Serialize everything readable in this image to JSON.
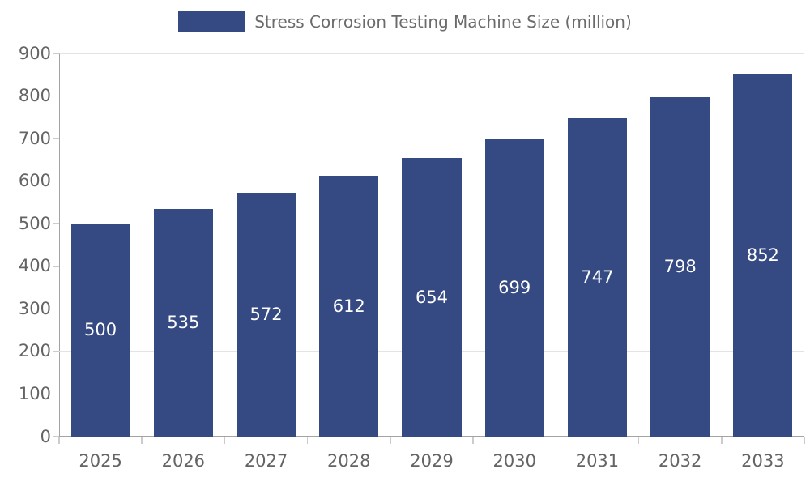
{
  "chart_data": {
    "type": "bar",
    "title": "Stress Corrosion Testing Machine Size (million)",
    "series_name": "Stress Corrosion Testing Machine Size (million)",
    "categories": [
      "2025",
      "2026",
      "2027",
      "2028",
      "2029",
      "2030",
      "2031",
      "2032",
      "2033"
    ],
    "values": [
      500,
      535,
      572,
      612,
      654,
      699,
      747,
      798,
      852
    ],
    "xlabel": "",
    "ylabel": "",
    "ylim": [
      0,
      900
    ],
    "yticks": [
      0,
      100,
      200,
      300,
      400,
      500,
      600,
      700,
      800,
      900
    ],
    "grid": true,
    "legend_position": "top-center",
    "bar_label_position": "center",
    "colors": {
      "bar": "#354982",
      "bar_label": "#ffffff",
      "axis_text": "#646464",
      "legend_text": "#6b6b6b",
      "gridline": "#e3e3e3",
      "spine": "#a3a3a3",
      "tick": "#cccccc",
      "background": "#ffffff"
    }
  }
}
